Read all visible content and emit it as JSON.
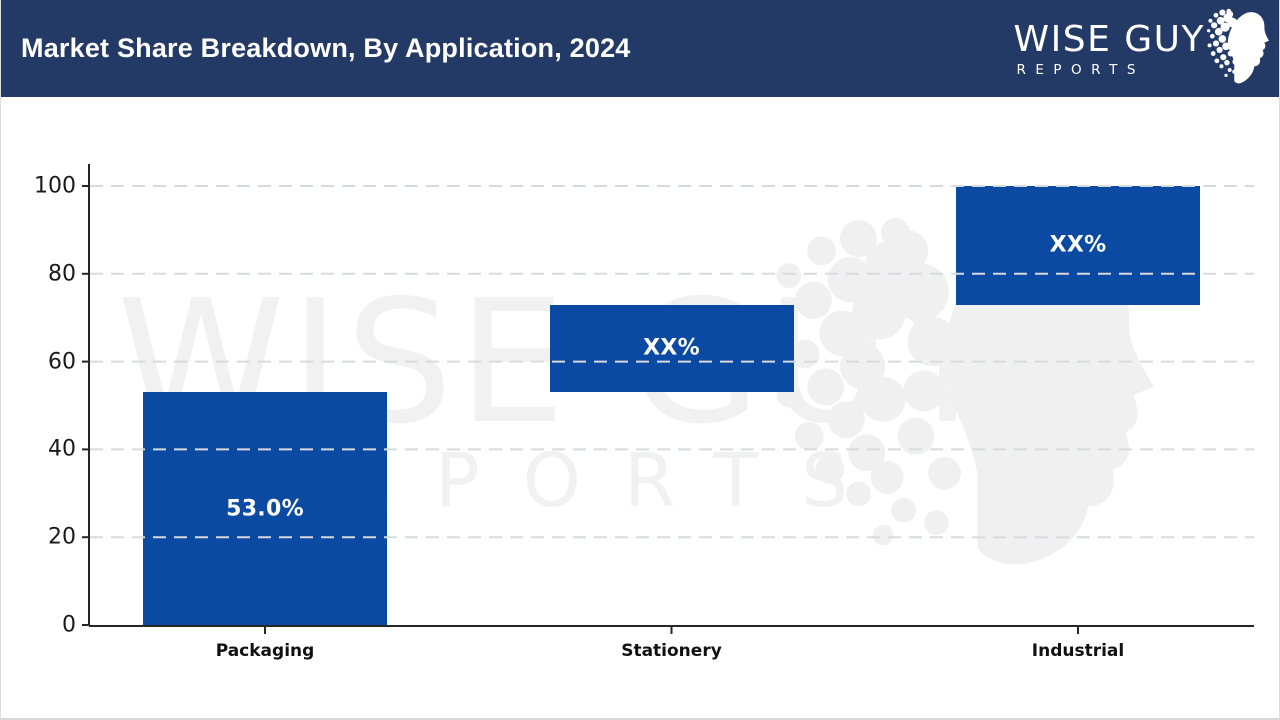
{
  "header": {
    "title": "Market Share Breakdown, By Application, 2024",
    "bg_color": "#233a66",
    "logo": {
      "line1": "WISE GUY",
      "line2": "REPORTS"
    }
  },
  "watermark": {
    "line1": "WISE GUY",
    "line2": "REPORTS"
  },
  "chart_data": {
    "type": "bar",
    "subtype": "waterfall-stacked-segments",
    "title": "Market Share Breakdown, By Application, 2024",
    "categories": [
      "Packaging",
      "Stationery",
      "Industrial"
    ],
    "segments": [
      {
        "category": "Packaging",
        "start": 0,
        "end": 53,
        "label": "53.0%"
      },
      {
        "category": "Stationery",
        "start": 53,
        "end": 73,
        "label": "XX%"
      },
      {
        "category": "Industrial",
        "start": 73,
        "end": 100,
        "label": "XX%"
      }
    ],
    "xlabel": "",
    "ylabel": "",
    "ylim": [
      0,
      100
    ],
    "yticks": [
      0,
      20,
      40,
      60,
      80,
      100
    ],
    "grid": "horizontal-dashed",
    "legend": null,
    "bar_color": "#0b4aa2",
    "bar_label_color": "#ffffff",
    "axis_color": "#262626",
    "grid_color": "#d7dade"
  }
}
